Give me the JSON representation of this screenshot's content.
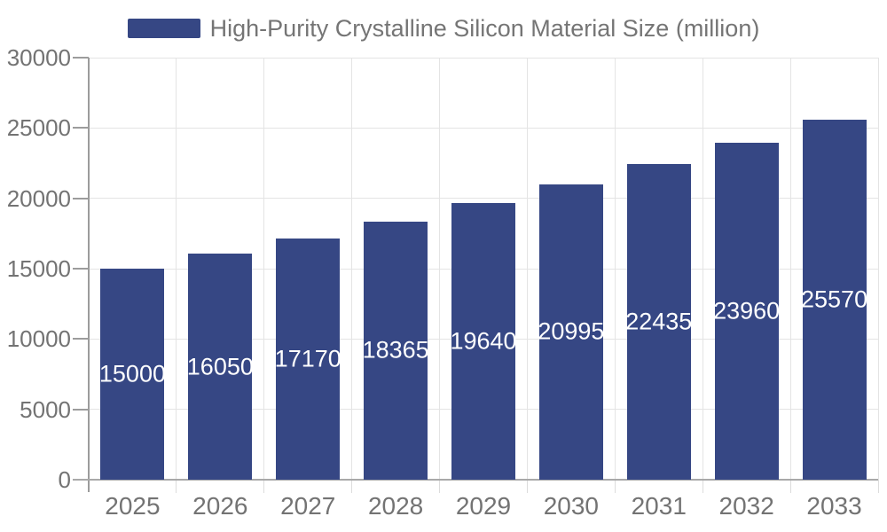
{
  "legend": {
    "label": "High-Purity Crystalline Silicon Material Size (million)",
    "swatch_color": "#364784"
  },
  "chart_data": {
    "type": "bar",
    "title": "High-Purity Crystalline Silicon Material Size (million)",
    "categories": [
      "2025",
      "2026",
      "2027",
      "2028",
      "2029",
      "2030",
      "2031",
      "2032",
      "2033"
    ],
    "values": [
      15000,
      16050,
      17170,
      18365,
      19640,
      20995,
      22435,
      23960,
      25570
    ],
    "series": [
      {
        "name": "High-Purity Crystalline Silicon Material Size (million)",
        "values": [
          15000,
          16050,
          17170,
          18365,
          19640,
          20995,
          22435,
          23960,
          25570
        ]
      }
    ],
    "xlabel": "",
    "ylabel": "",
    "ylim": [
      0,
      30000
    ],
    "yticks": [
      0,
      5000,
      10000,
      15000,
      20000,
      25000,
      30000
    ],
    "grid": true,
    "legend_position": "top",
    "value_labels": "inside-center",
    "colors": {
      "bar": "#364784",
      "value_label": "#ffffff",
      "gridline": "#e4e4e4",
      "axis_line": "#9c9c9c",
      "axis_text": "#737373",
      "legend_text": "#757575",
      "background": "#ffffff"
    }
  }
}
